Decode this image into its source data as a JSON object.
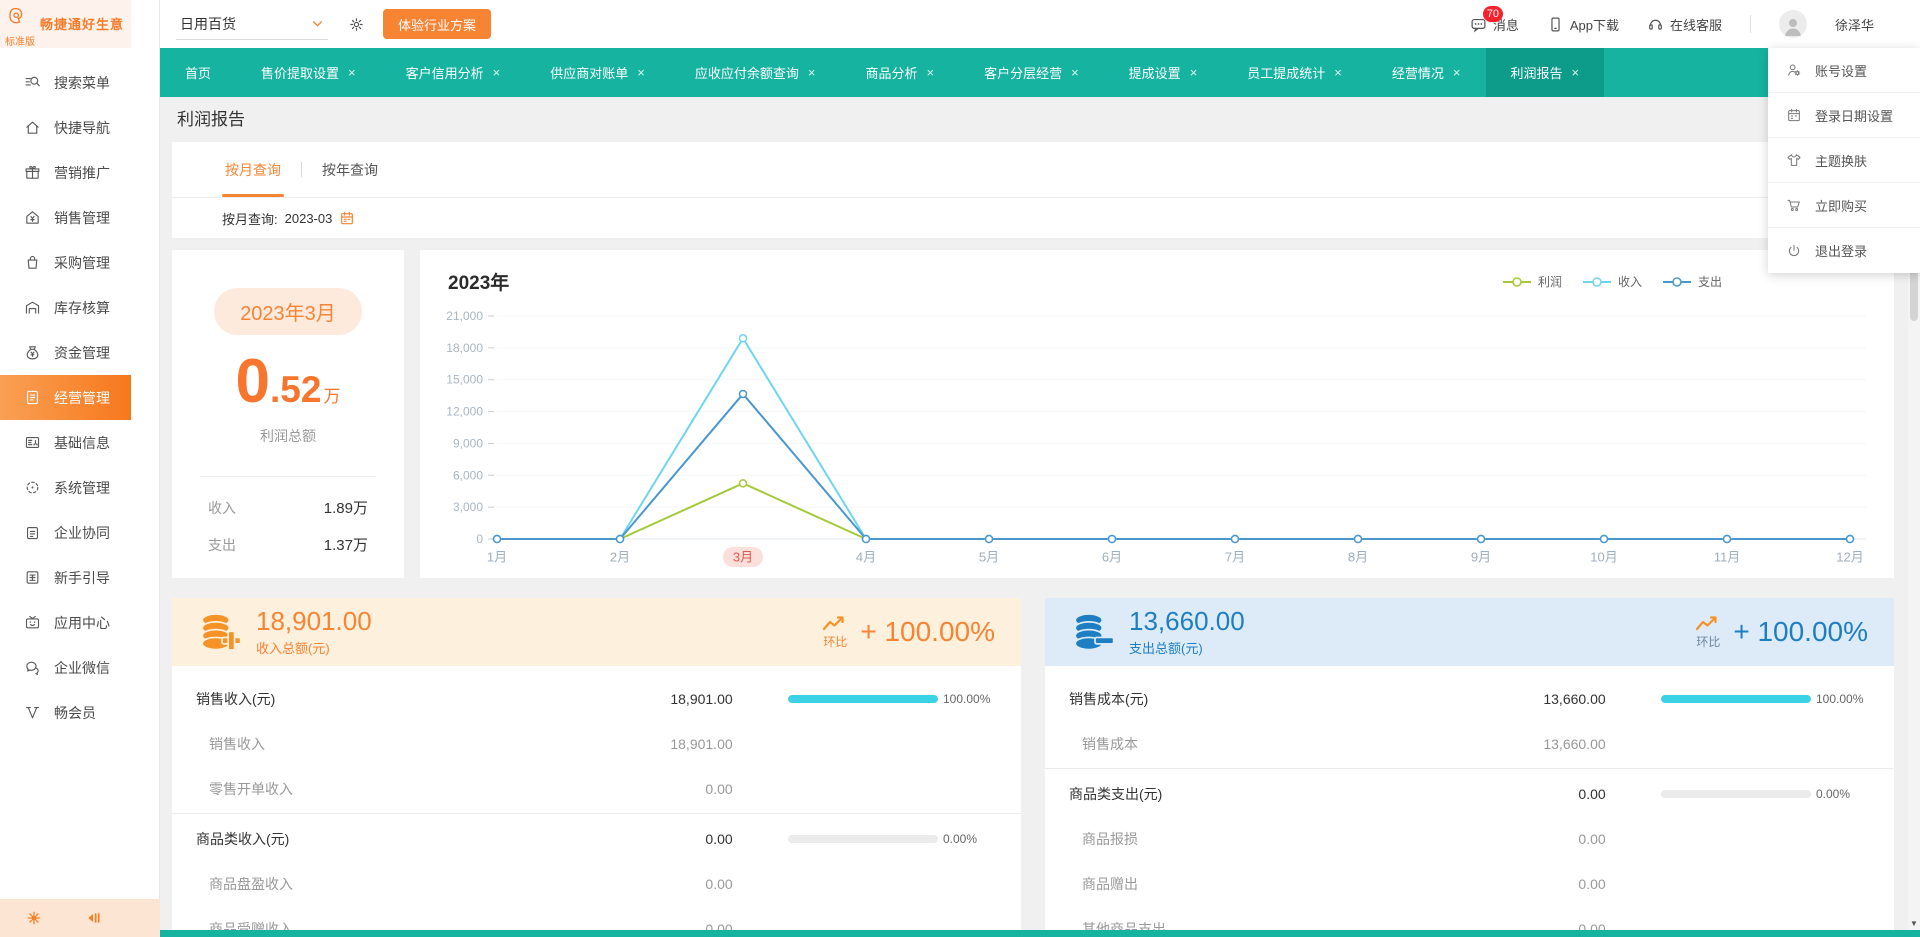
{
  "brand": {
    "name": "畅捷通好生意",
    "edition": "标准版"
  },
  "header": {
    "org_select": {
      "value": "日用百货"
    },
    "cta_button": "体验行业方案",
    "messages_label": "消息",
    "messages_badge": "70",
    "app_download_label": "App下载",
    "support_label": "在线客服",
    "username": "徐泽华"
  },
  "nav_tabs": [
    {
      "label": "首页",
      "closable": false,
      "active": false
    },
    {
      "label": "售价提取设置",
      "closable": true,
      "active": false
    },
    {
      "label": "客户信用分析",
      "closable": true,
      "active": false
    },
    {
      "label": "供应商对账单",
      "closable": true,
      "active": false
    },
    {
      "label": "应收应付余额查询",
      "closable": true,
      "active": false
    },
    {
      "label": "商品分析",
      "closable": true,
      "active": false
    },
    {
      "label": "客户分层经营",
      "closable": true,
      "active": false
    },
    {
      "label": "提成设置",
      "closable": true,
      "active": false
    },
    {
      "label": "员工提成统计",
      "closable": true,
      "active": false
    },
    {
      "label": "经营情况",
      "closable": true,
      "active": false
    },
    {
      "label": "利润报告",
      "closable": true,
      "active": true
    }
  ],
  "sidebar": {
    "items": [
      {
        "label": "搜索菜单",
        "icon": "search-icon",
        "active": false
      },
      {
        "label": "快捷导航",
        "icon": "home-icon",
        "active": false
      },
      {
        "label": "营销推广",
        "icon": "gift-icon",
        "active": false
      },
      {
        "label": "销售管理",
        "icon": "sales-icon",
        "active": false
      },
      {
        "label": "采购管理",
        "icon": "purchase-bag-icon",
        "active": false
      },
      {
        "label": "库存核算",
        "icon": "warehouse-icon",
        "active": false
      },
      {
        "label": "资金管理",
        "icon": "money-bag-icon",
        "active": false
      },
      {
        "label": "经营管理",
        "icon": "business-doc-icon",
        "active": true
      },
      {
        "label": "基础信息",
        "icon": "info-card-icon",
        "active": false
      },
      {
        "label": "系统管理",
        "icon": "system-icon",
        "active": false
      },
      {
        "label": "企业协同",
        "icon": "collab-icon",
        "active": false
      },
      {
        "label": "新手引导",
        "icon": "guide-icon",
        "active": false
      },
      {
        "label": "应用中心",
        "icon": "app-center-icon",
        "active": false
      },
      {
        "label": "企业微信",
        "icon": "wechat-icon",
        "active": false
      },
      {
        "label": "畅会员",
        "icon": "member-icon",
        "active": false
      }
    ]
  },
  "page": {
    "title": "利润报告",
    "view_tabs": [
      {
        "label": "按月查询",
        "active": true
      },
      {
        "label": "按年查询",
        "active": false
      }
    ],
    "filter_label": "按月查询:",
    "filter_value": "2023-03"
  },
  "summary_card": {
    "period": "2023年3月",
    "amount_integer": "0",
    "amount_decimal": ".52",
    "amount_unit": "万",
    "amount_label": "利润总额",
    "rows": [
      {
        "label": "收入",
        "value": "1.89万"
      },
      {
        "label": "支出",
        "value": "1.37万"
      }
    ]
  },
  "chart_data": {
    "type": "line",
    "title": "2023年",
    "x": [
      "1月",
      "2月",
      "3月",
      "4月",
      "5月",
      "6月",
      "7月",
      "8月",
      "9月",
      "10月",
      "11月",
      "12月"
    ],
    "highlighted_x": "3月",
    "ylim": [
      0,
      21000
    ],
    "yticks": [
      0,
      3000,
      6000,
      9000,
      12000,
      15000,
      18000,
      21000
    ],
    "grid": true,
    "legend_position": "top-right",
    "series": [
      {
        "name": "利润",
        "color": "#a6c93a",
        "values": [
          0,
          0,
          5241,
          0,
          0,
          0,
          0,
          0,
          0,
          0,
          0,
          0
        ]
      },
      {
        "name": "收入",
        "color": "#6ed5f0",
        "values": [
          0,
          0,
          18901,
          0,
          0,
          0,
          0,
          0,
          0,
          0,
          0,
          0
        ]
      },
      {
        "name": "支出",
        "color": "#4a97cf",
        "values": [
          0,
          0,
          13660,
          0,
          0,
          0,
          0,
          0,
          0,
          0,
          0,
          0
        ]
      }
    ]
  },
  "income_card": {
    "total": "18,901.00",
    "total_label": "收入总额(元)",
    "ratio_label": "环比",
    "ratio_value": "+ 100.00%",
    "rows": [
      {
        "label": "销售收入(元)",
        "value": "18,901.00",
        "pct": "100.00%",
        "bar": 100,
        "type": "group"
      },
      {
        "label": "销售收入",
        "value": "18,901.00",
        "type": "sub"
      },
      {
        "label": "零售开单收入",
        "value": "0.00",
        "type": "sub"
      },
      {
        "label": "商品类收入(元)",
        "value": "0.00",
        "pct": "0.00%",
        "bar": 0,
        "type": "group",
        "divider": true
      },
      {
        "label": "商品盘盈收入",
        "value": "0.00",
        "type": "sub"
      },
      {
        "label": "商品受赠收入",
        "value": "0.00",
        "type": "sub"
      }
    ]
  },
  "expense_card": {
    "total": "13,660.00",
    "total_label": "支出总额(元)",
    "ratio_label": "环比",
    "ratio_value": "+ 100.00%",
    "rows": [
      {
        "label": "销售成本(元)",
        "value": "13,660.00",
        "pct": "100.00%",
        "bar": 100,
        "type": "group"
      },
      {
        "label": "销售成本",
        "value": "13,660.00",
        "type": "sub"
      },
      {
        "label": "商品类支出(元)",
        "value": "0.00",
        "pct": "0.00%",
        "bar": 0,
        "type": "group",
        "divider": true
      },
      {
        "label": "商品报损",
        "value": "0.00",
        "type": "sub"
      },
      {
        "label": "商品赠出",
        "value": "0.00",
        "type": "sub"
      },
      {
        "label": "其他商品支出",
        "value": "0.00",
        "type": "sub"
      }
    ]
  },
  "user_menu": {
    "items": [
      {
        "label": "账号设置",
        "icon": "account-settings-icon"
      },
      {
        "label": "登录日期设置",
        "icon": "login-date-icon"
      },
      {
        "label": "主题换肤",
        "icon": "theme-skin-icon"
      },
      {
        "label": "立即购买",
        "icon": "buy-now-cart-icon"
      },
      {
        "label": "退出登录",
        "icon": "logout-power-icon"
      }
    ]
  },
  "colors": {
    "brand_teal": "#16b3a0",
    "brand_teal_dark": "#0d9c89",
    "brand_orange": "#f78433",
    "income_accent": "#f78433",
    "expense_accent": "#1e7ec2",
    "progress_cyan": "#3bd2e5",
    "highlight_red": "#e4574e",
    "badge_red": "#f5222d"
  }
}
